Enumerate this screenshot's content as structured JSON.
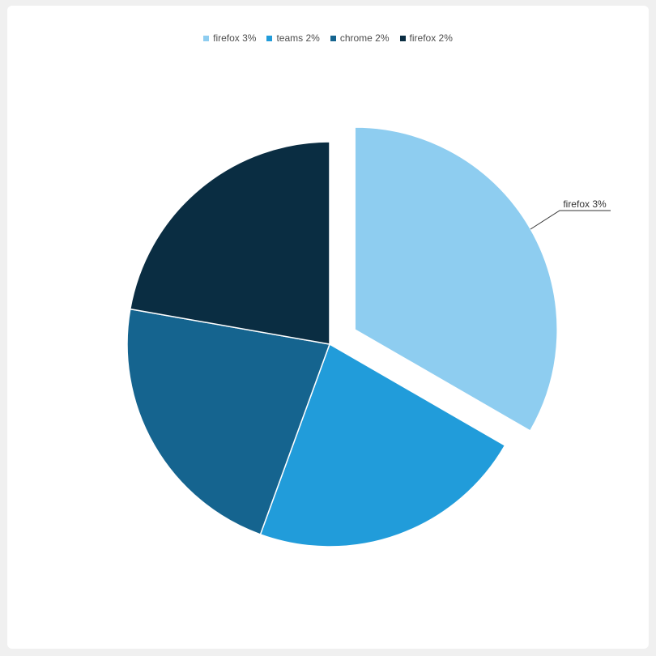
{
  "page": {
    "background_color": "#f0f0f0",
    "card_background_color": "#ffffff"
  },
  "chart_data": {
    "type": "pie",
    "title": "",
    "legend_position": "top",
    "direction": "clockwise",
    "start_angle_deg": 0,
    "slice_border_color": "#ffffff",
    "series": [
      {
        "label": "firefox 3%",
        "name": "firefox",
        "value": 3,
        "color": "#8ecdf0",
        "sliced": true
      },
      {
        "label": "teams 2%",
        "name": "teams",
        "value": 2,
        "color": "#219cda",
        "sliced": false
      },
      {
        "label": "chrome 2%",
        "name": "chrome",
        "value": 2,
        "color": "#15648f",
        "sliced": false
      },
      {
        "label": "firefox 2%",
        "name": "firefox",
        "value": 2,
        "color": "#0a2d42",
        "sliced": false
      }
    ],
    "callout": {
      "text": "firefox 3%",
      "target_slice_label": "firefox 3%"
    }
  }
}
